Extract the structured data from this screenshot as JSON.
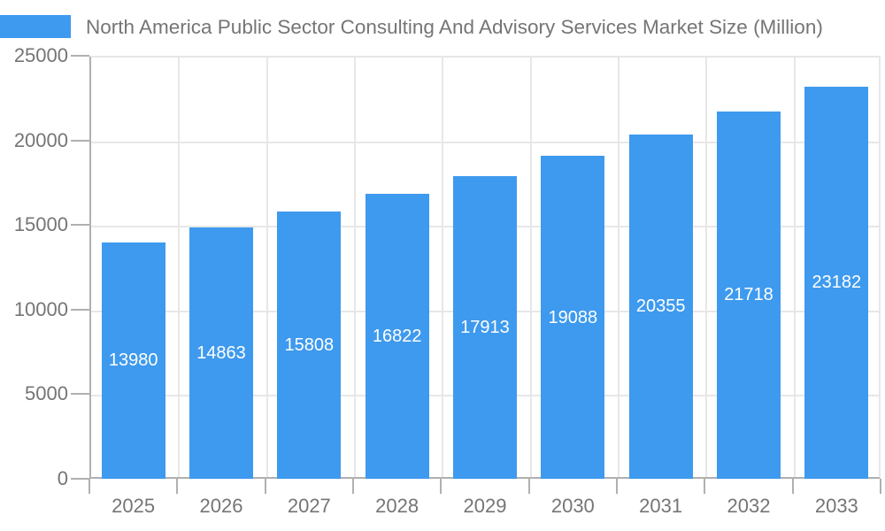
{
  "colors": {
    "bar": "#3E9AEE",
    "grid": "#e7e7e7",
    "axis": "#b0b0b0",
    "text": "#757575",
    "value_label": "#ffffff",
    "background": "#ffffff"
  },
  "legend": {
    "position": "top-left",
    "series_label": "North America Public Sector Consulting And Advisory Services Market Size (Million)"
  },
  "chart_data": {
    "type": "bar",
    "title": "North America Public Sector Consulting And Advisory Services Market Size (Million)",
    "categories": [
      "2025",
      "2026",
      "2027",
      "2028",
      "2029",
      "2030",
      "2031",
      "2032",
      "2033"
    ],
    "series": [
      {
        "name": "North America Public Sector Consulting And Advisory Services Market Size (Million)",
        "values": [
          13980,
          14863,
          15808,
          16822,
          17913,
          19088,
          20355,
          21718,
          23182
        ]
      }
    ],
    "value_labels": [
      13980,
      14863,
      15808,
      16822,
      17913,
      19088,
      20355,
      21718,
      23182
    ],
    "xlabel": "",
    "ylabel": "",
    "ylim": [
      0,
      25000
    ],
    "yticks": [
      0,
      5000,
      10000,
      15000,
      20000,
      25000
    ],
    "grid": true,
    "value_label_position": "inside-center",
    "legend_position": "top-left"
  }
}
